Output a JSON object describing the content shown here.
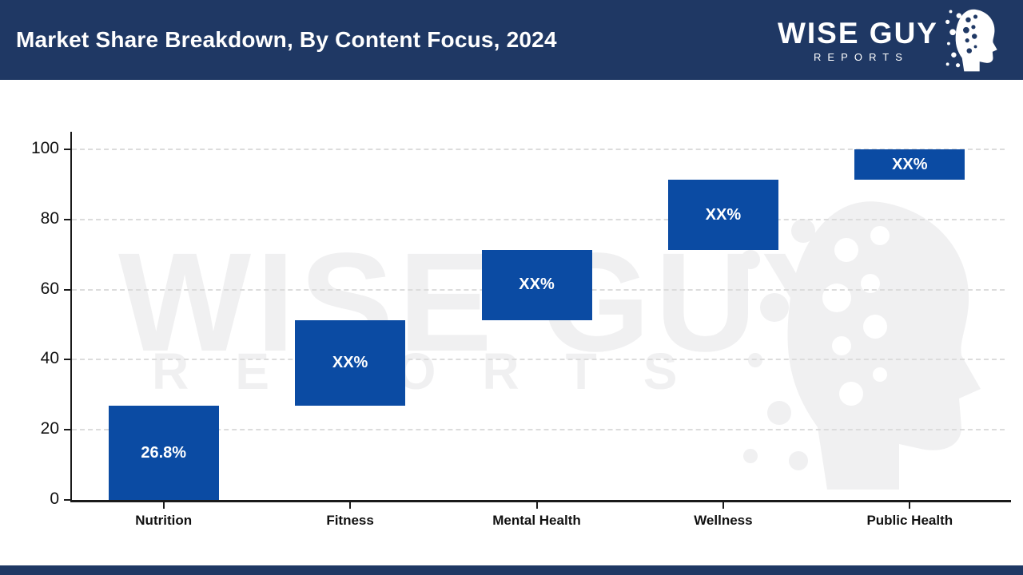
{
  "header": {
    "title": "Market Share Breakdown, By Content Focus, 2024",
    "logo": {
      "line1": "WISE GUY",
      "line2": "REPORTS"
    }
  },
  "watermark": {
    "line1": "WISE GUY",
    "line2": "REPORTS"
  },
  "chart_data": {
    "type": "bar",
    "subtype": "waterfall",
    "title": "Market Share Breakdown, By Content Focus, 2024",
    "xlabel": "",
    "ylabel": "",
    "categories": [
      "Nutrition",
      "Fitness",
      "Mental Health",
      "Wellness",
      "Public Health"
    ],
    "segments": [
      {
        "category": "Nutrition",
        "start": 0,
        "end": 26.8,
        "increment": 26.8,
        "label": "26.8%"
      },
      {
        "category": "Fitness",
        "start": 26.8,
        "end": 51.3,
        "increment": 24.5,
        "label": "XX%"
      },
      {
        "category": "Mental Health",
        "start": 51.3,
        "end": 71.3,
        "increment": 20.0,
        "label": "XX%"
      },
      {
        "category": "Wellness",
        "start": 71.3,
        "end": 91.3,
        "increment": 20.0,
        "label": "XX%"
      },
      {
        "category": "Public Health",
        "start": 91.3,
        "end": 100,
        "increment": 8.7,
        "label": "XX%"
      }
    ],
    "y_ticks": [
      0,
      20,
      40,
      60,
      80,
      100
    ],
    "ylim": [
      0,
      105
    ],
    "grid": "horizontal dashed",
    "legend": "none",
    "bar_color": "#0B4BA3",
    "bar_label_color": "#FFFFFF"
  },
  "colors": {
    "header_bg": "#1F3864",
    "footer_bg": "#1F3864",
    "bar": "#0B4BA3",
    "axis": "#1A1A1A",
    "gridline": "#DCDCDC",
    "watermark": "#F0F0F1",
    "title_text": "#FFFFFF"
  }
}
